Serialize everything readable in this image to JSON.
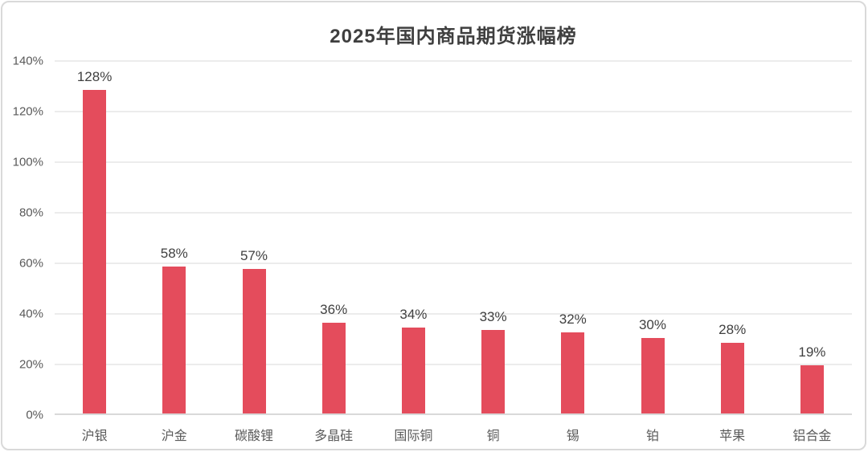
{
  "chart_data": {
    "type": "bar",
    "title": "2025年国内商品期货涨幅榜",
    "categories": [
      "沪银",
      "沪金",
      "碳酸锂",
      "多晶硅",
      "国际铜",
      "铜",
      "锡",
      "铂",
      "苹果",
      "铝合金"
    ],
    "values": [
      128,
      58,
      57,
      36,
      34,
      33,
      32,
      30,
      28,
      19
    ],
    "data_labels": [
      "128%",
      "58%",
      "57%",
      "36%",
      "34%",
      "33%",
      "32%",
      "30%",
      "28%",
      "19%"
    ],
    "xlabel": "",
    "ylabel": "",
    "ylim": [
      0,
      140
    ],
    "ytick_step": 20,
    "ytick_labels": [
      "0%",
      "20%",
      "40%",
      "60%",
      "80%",
      "100%",
      "120%",
      "140%"
    ],
    "grid": true,
    "legend": "none",
    "bar_color": "#e44c5c"
  },
  "colors": {
    "title": "#3f3f3f",
    "axis_label": "#595959",
    "data_label": "#404040",
    "gridline": "#ececec",
    "axis_line": "#d9d9d9",
    "bar": "#e44c5c",
    "card_border": "#d9d9d9",
    "background": "#ffffff"
  }
}
